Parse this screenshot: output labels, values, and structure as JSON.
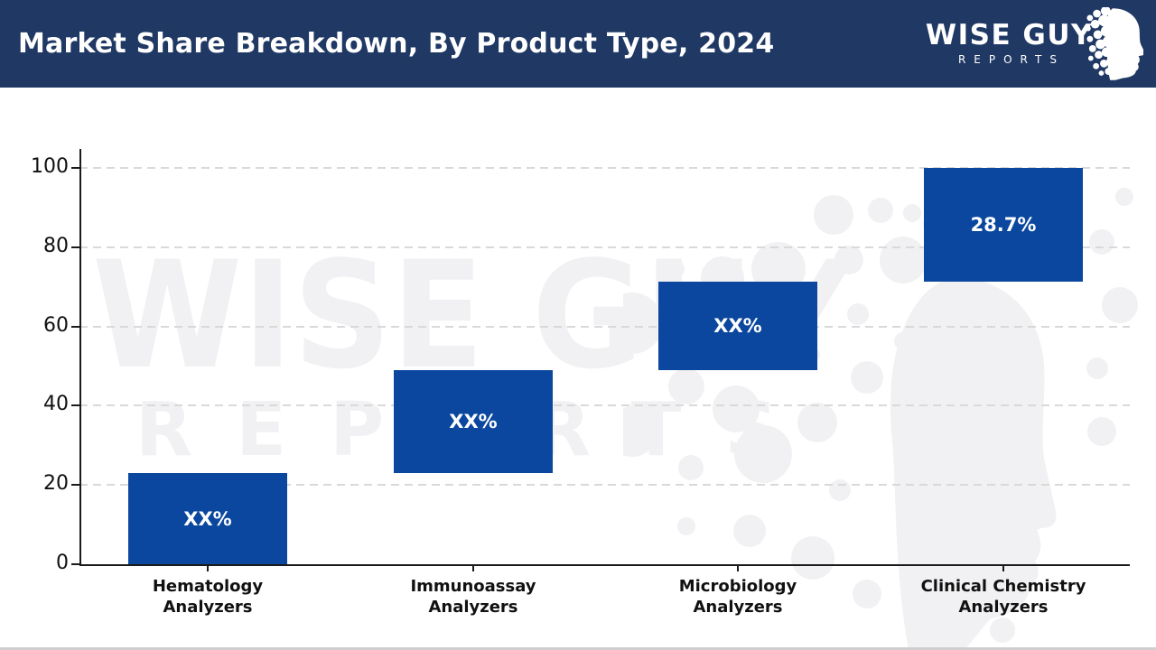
{
  "header": {
    "title": "Market Share Breakdown, By Product Type, 2024",
    "logo": {
      "name": "WISE GUY",
      "sub": "REPORTS"
    }
  },
  "watermark": {
    "line1": "WISE GUY",
    "line2": "REPORTS"
  },
  "colors": {
    "header_bg": "#1f3864",
    "bar": "#0b479e",
    "gridline": "#d9d9d9",
    "axis": "#1a1a1a",
    "watermark": "#f1f1f3",
    "bar_label_text": "#ffffff",
    "category_label_text": "#111111",
    "bottom_line": "#cfcfcf"
  },
  "chart_data": {
    "type": "bar",
    "subtype": "waterfall (floating segment bars, each starts where previous ends)",
    "title": "Market Share Breakdown, By Product Type, 2024",
    "unit": "%",
    "categories": [
      [
        "Hematology",
        "Analyzers"
      ],
      [
        "Immunoassay",
        "Analyzers"
      ],
      [
        "Microbiology",
        "Analyzers"
      ],
      [
        "Clinical Chemistry",
        "Analyzers"
      ]
    ],
    "segments": [
      {
        "category": "Hematology Analyzers",
        "from": 0,
        "to": 23,
        "size": 23,
        "value_label": "XX%"
      },
      {
        "category": "Immunoassay Analyzers",
        "from": 23,
        "to": 49,
        "size": 26,
        "value_label": "XX%"
      },
      {
        "category": "Microbiology Analyzers",
        "from": 49,
        "to": 71.3,
        "size": 22.3,
        "value_label": "XX%"
      },
      {
        "category": "Clinical Chemistry Analyzers",
        "from": 71.3,
        "to": 100,
        "size": 28.7,
        "value_label": "28.7%"
      }
    ],
    "ylim": [
      0,
      100
    ],
    "yticks": [
      0,
      20,
      40,
      60,
      80,
      100
    ],
    "grid": "horizontal dashed",
    "legend_position": "none",
    "bar_color": "#0b479e"
  }
}
